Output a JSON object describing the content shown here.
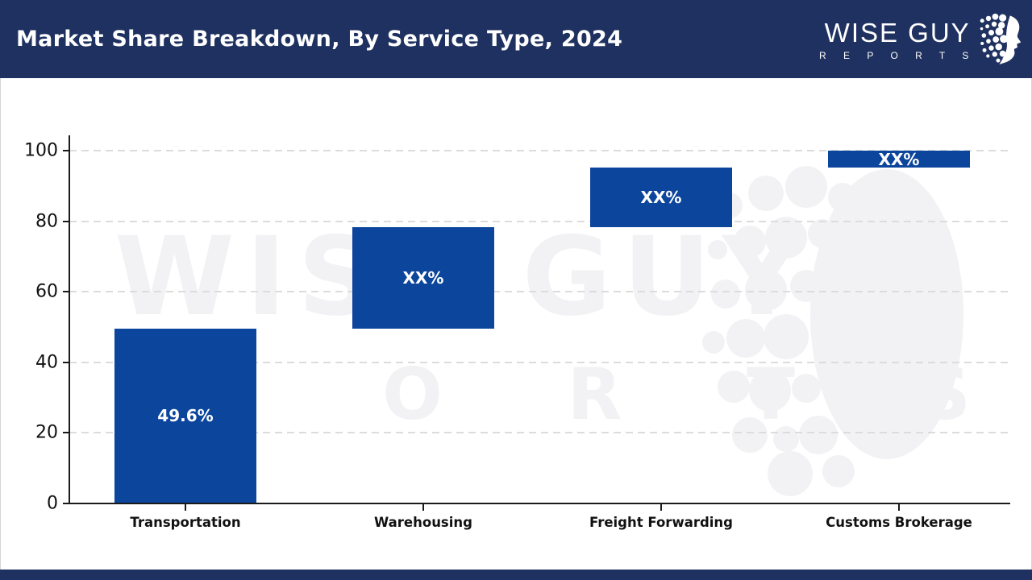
{
  "header": {
    "title": "Market Share Breakdown, By Service Type, 2024",
    "bg_color": "#1F3160",
    "logo": {
      "line1": "WISE GUY",
      "line2": "R E P O R T S"
    }
  },
  "chart_data": {
    "type": "bar",
    "subtype": "waterfall",
    "title": "Market Share Breakdown, By Service Type, 2024",
    "categories": [
      "Transportation",
      "Warehousing",
      "Freight Forwarding",
      "Customs Brokerage"
    ],
    "segments": [
      {
        "category": "Transportation",
        "start": 0,
        "end": 49.6,
        "label": "49.6%"
      },
      {
        "category": "Warehousing",
        "start": 49.6,
        "end": 78.3,
        "label": "XX%"
      },
      {
        "category": "Freight Forwarding",
        "start": 78.3,
        "end": 95.1,
        "label": "XX%"
      },
      {
        "category": "Customs Brokerage",
        "start": 95.1,
        "end": 100,
        "label": "XX%"
      }
    ],
    "ylim": [
      0,
      100
    ],
    "yticks": [
      0,
      20,
      40,
      60,
      80,
      100
    ],
    "grid": "dashed-horizontal",
    "legend": "none",
    "bar_color": "#0C459C",
    "value_label_color": "#FFFFFF"
  },
  "watermark": {
    "line1": "WISE GUY",
    "line2": "P O R T S"
  },
  "footer": {
    "bg_color": "#1F3160"
  }
}
